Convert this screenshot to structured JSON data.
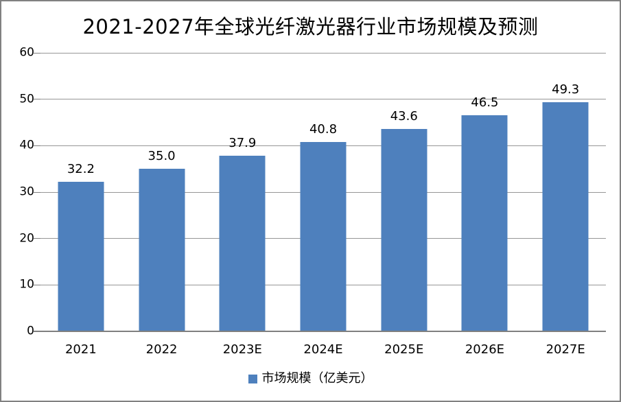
{
  "title": "2021-2027年全球光纤激光器行业市场规模及预测",
  "legend": {
    "label": "市场规模（亿美元）"
  },
  "colors": {
    "bar": "#4e80bd",
    "gridline": "#969696",
    "axis_line": "#7f7f7f",
    "frame_border": "#808080",
    "text": "#000000"
  },
  "chart_data": {
    "type": "bar",
    "title": "2021-2027年全球光纤激光器行业市场规模及预测",
    "categories": [
      "2021",
      "2022",
      "2023E",
      "2024E",
      "2025E",
      "2026E",
      "2027E"
    ],
    "values": [
      32.2,
      35.0,
      37.9,
      40.8,
      43.6,
      46.5,
      49.3
    ],
    "data_labels": [
      "32.2",
      "35.0",
      "37.9",
      "40.8",
      "43.6",
      "46.5",
      "49.3"
    ],
    "xlabel": "",
    "ylabel": "",
    "ylim": [
      0,
      60
    ],
    "yticks": [
      0,
      10,
      20,
      30,
      40,
      50,
      60
    ],
    "grid": true,
    "legend": [
      "市场规模（亿美元）"
    ],
    "legend_position": "bottom"
  }
}
